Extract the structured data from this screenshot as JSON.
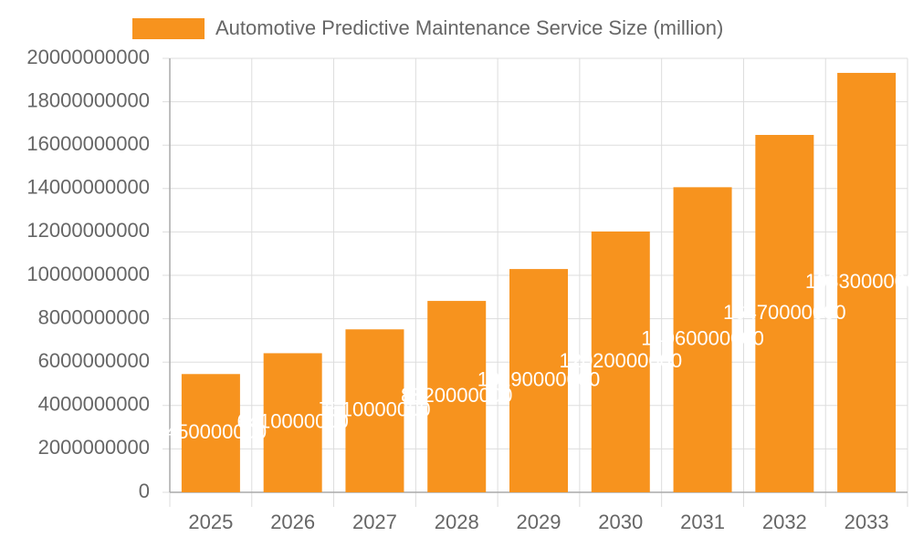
{
  "chart_data": {
    "type": "bar",
    "categories": [
      "2025",
      "2026",
      "2027",
      "2028",
      "2029",
      "2030",
      "2031",
      "2032",
      "2033"
    ],
    "series": [
      {
        "name": "Automotive Predictive Maintenance Service Size (million)",
        "color": "#f7931e",
        "values": [
          5450000000,
          6410000000,
          7510000000,
          8820000000,
          10290000000,
          12020000000,
          14060000000,
          16470000000,
          19330000000
        ]
      }
    ],
    "ylim": [
      0,
      20000000000
    ],
    "yticks": [
      0,
      2000000000,
      4000000000,
      6000000000,
      8000000000,
      10000000000,
      12000000000,
      14000000000,
      16000000000,
      18000000000,
      20000000000
    ],
    "grid": true,
    "legend": "top",
    "data_labels": true
  }
}
